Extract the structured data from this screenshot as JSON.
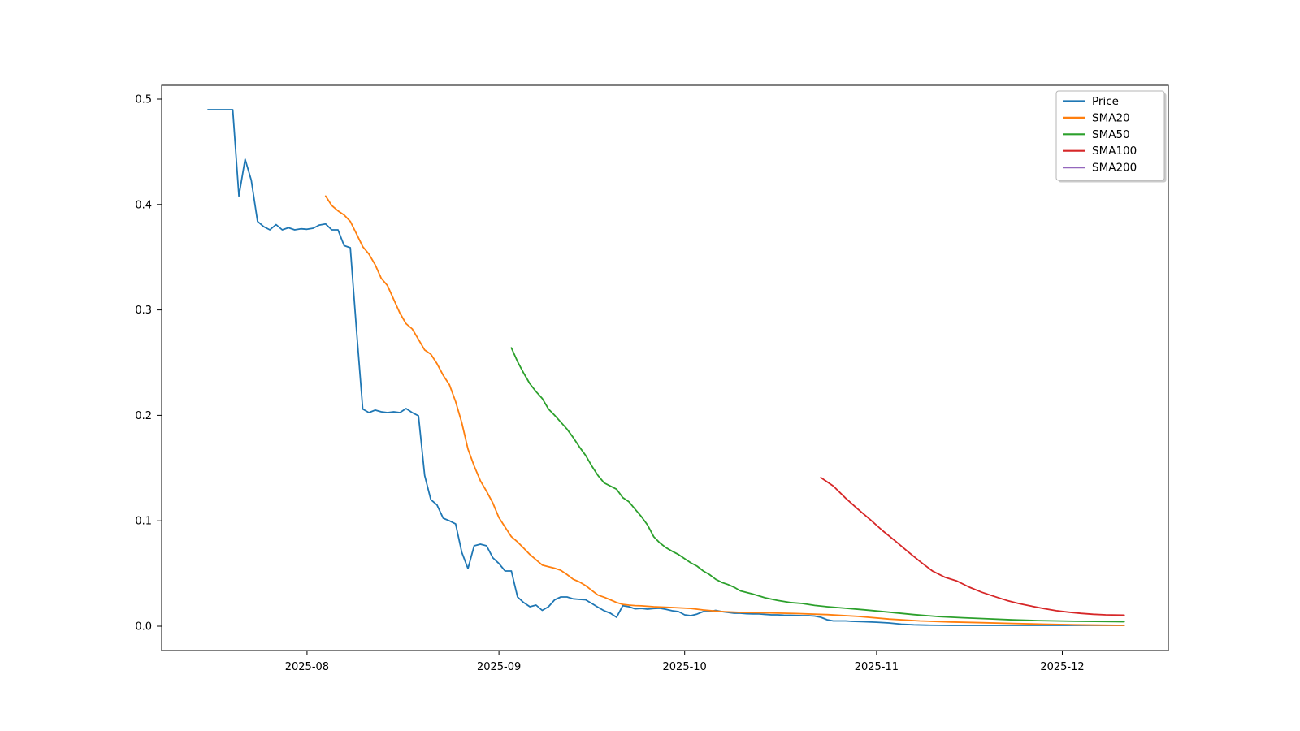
{
  "chart_data": {
    "type": "line",
    "title": "",
    "xlabel": "",
    "ylabel": "",
    "grid": false,
    "x_axis": {
      "unit": "days_since_first_point",
      "first_point_date": "2025-07-16",
      "visible_range_days": [
        -7.5,
        155
      ],
      "ticks": [
        {
          "label": "2025-08",
          "day": 16
        },
        {
          "label": "2025-09",
          "day": 47
        },
        {
          "label": "2025-10",
          "day": 77
        },
        {
          "label": "2025-11",
          "day": 108
        },
        {
          "label": "2025-12",
          "day": 138
        }
      ]
    },
    "y_axis": {
      "visible_range": [
        -0.023,
        0.513
      ],
      "ticks": [
        {
          "label": "0.0",
          "value": 0.0
        },
        {
          "label": "0.1",
          "value": 0.1
        },
        {
          "label": "0.2",
          "value": 0.2
        },
        {
          "label": "0.3",
          "value": 0.3
        },
        {
          "label": "0.4",
          "value": 0.4
        },
        {
          "label": "0.5",
          "value": 0.5
        }
      ]
    },
    "legend": {
      "position": "upper right",
      "entries": [
        "Price",
        "SMA20",
        "SMA50",
        "SMA100",
        "SMA200"
      ]
    },
    "series": [
      {
        "name": "Price",
        "color": "#1f77b4",
        "points": [
          [
            0,
            0.49
          ],
          [
            1,
            0.49
          ],
          [
            2,
            0.49
          ],
          [
            3,
            0.49
          ],
          [
            4,
            0.49
          ],
          [
            5,
            0.408
          ],
          [
            6,
            0.443
          ],
          [
            7,
            0.423
          ],
          [
            8,
            0.384
          ],
          [
            9,
            0.379
          ],
          [
            10,
            0.376
          ],
          [
            11,
            0.381
          ],
          [
            12,
            0.376
          ],
          [
            13,
            0.378
          ],
          [
            14,
            0.376
          ],
          [
            15,
            0.377
          ],
          [
            16,
            0.3765
          ],
          [
            17,
            0.3775
          ],
          [
            18,
            0.3805
          ],
          [
            19,
            0.3815
          ],
          [
            20,
            0.376
          ],
          [
            21,
            0.376
          ],
          [
            22,
            0.361
          ],
          [
            23,
            0.359
          ],
          [
            24,
            0.28
          ],
          [
            25,
            0.206
          ],
          [
            26,
            0.2026
          ],
          [
            27,
            0.205
          ],
          [
            28,
            0.2034
          ],
          [
            29,
            0.2026
          ],
          [
            30,
            0.2034
          ],
          [
            31,
            0.2026
          ],
          [
            32,
            0.2065
          ],
          [
            33,
            0.2026
          ],
          [
            34,
            0.1995
          ],
          [
            35,
            0.143
          ],
          [
            36,
            0.12
          ],
          [
            37,
            0.115
          ],
          [
            38,
            0.1025
          ],
          [
            39,
            0.1
          ],
          [
            40,
            0.097
          ],
          [
            41,
            0.07
          ],
          [
            42,
            0.0547
          ],
          [
            43,
            0.0763
          ],
          [
            44,
            0.0778
          ],
          [
            45,
            0.0763
          ],
          [
            46,
            0.065
          ],
          [
            47,
            0.0595
          ],
          [
            48,
            0.0524
          ],
          [
            49,
            0.0524
          ],
          [
            50,
            0.0277
          ],
          [
            51,
            0.0224
          ],
          [
            52,
            0.0185
          ],
          [
            53,
            0.02
          ],
          [
            54,
            0.015
          ],
          [
            55,
            0.0185
          ],
          [
            56,
            0.025
          ],
          [
            57,
            0.0277
          ],
          [
            58,
            0.0277
          ],
          [
            59,
            0.026
          ],
          [
            60,
            0.0254
          ],
          [
            61,
            0.025
          ],
          [
            62,
            0.0216
          ],
          [
            63,
            0.018
          ],
          [
            64,
            0.0146
          ],
          [
            65,
            0.0123
          ],
          [
            66,
            0.0085
          ],
          [
            67,
            0.0195
          ],
          [
            68,
            0.0185
          ],
          [
            69,
            0.0165
          ],
          [
            70,
            0.0169
          ],
          [
            71,
            0.0162
          ],
          [
            72,
            0.0168
          ],
          [
            73,
            0.017
          ],
          [
            74,
            0.016
          ],
          [
            75,
            0.0146
          ],
          [
            76,
            0.0139
          ],
          [
            77,
            0.0108
          ],
          [
            78,
            0.01
          ],
          [
            79,
            0.0115
          ],
          [
            80,
            0.0139
          ],
          [
            81,
            0.0139
          ],
          [
            82,
            0.015
          ],
          [
            83,
            0.0139
          ],
          [
            84,
            0.0131
          ],
          [
            85,
            0.0123
          ],
          [
            86,
            0.0123
          ],
          [
            87,
            0.0119
          ],
          [
            88,
            0.0116
          ],
          [
            89,
            0.0116
          ],
          [
            90,
            0.0112
          ],
          [
            91,
            0.0108
          ],
          [
            92,
            0.0108
          ],
          [
            93,
            0.0105
          ],
          [
            94,
            0.0104
          ],
          [
            95,
            0.0102
          ],
          [
            96,
            0.01
          ],
          [
            97,
            0.01
          ],
          [
            98,
            0.0096
          ],
          [
            99,
            0.0085
          ],
          [
            100,
            0.0062
          ],
          [
            101,
            0.005
          ],
          [
            102,
            0.005
          ],
          [
            103,
            0.005
          ],
          [
            104,
            0.0046
          ],
          [
            106,
            0.0042
          ],
          [
            108,
            0.0038
          ],
          [
            110,
            0.0031
          ],
          [
            112,
            0.0019
          ],
          [
            114,
            0.0013
          ],
          [
            116,
            0.001
          ],
          [
            120,
            0.0008
          ],
          [
            130,
            0.0008
          ],
          [
            140,
            0.0008
          ],
          [
            148,
            0.0008
          ]
        ]
      },
      {
        "name": "SMA20",
        "color": "#ff7f0e",
        "points": [
          [
            19,
            0.408
          ],
          [
            20,
            0.399
          ],
          [
            21,
            0.394
          ],
          [
            22,
            0.39
          ],
          [
            23,
            0.384
          ],
          [
            24,
            0.372
          ],
          [
            25,
            0.36
          ],
          [
            26,
            0.353
          ],
          [
            27,
            0.343
          ],
          [
            28,
            0.33
          ],
          [
            29,
            0.323
          ],
          [
            30,
            0.31
          ],
          [
            31,
            0.297
          ],
          [
            32,
            0.287
          ],
          [
            33,
            0.282
          ],
          [
            34,
            0.272
          ],
          [
            35,
            0.262
          ],
          [
            36,
            0.258
          ],
          [
            37,
            0.249
          ],
          [
            38,
            0.238
          ],
          [
            39,
            0.229
          ],
          [
            40,
            0.213
          ],
          [
            41,
            0.193
          ],
          [
            42,
            0.168
          ],
          [
            43,
            0.152
          ],
          [
            44,
            0.138
          ],
          [
            45,
            0.128
          ],
          [
            46,
            0.117
          ],
          [
            47,
            0.103
          ],
          [
            48,
            0.094
          ],
          [
            49,
            0.085
          ],
          [
            50,
            0.08
          ],
          [
            51,
            0.074
          ],
          [
            52,
            0.068
          ],
          [
            53,
            0.063
          ],
          [
            54,
            0.058
          ],
          [
            55,
            0.0565
          ],
          [
            56,
            0.055
          ],
          [
            57,
            0.053
          ],
          [
            58,
            0.049
          ],
          [
            59,
            0.0445
          ],
          [
            60,
            0.042
          ],
          [
            61,
            0.0385
          ],
          [
            62,
            0.034
          ],
          [
            63,
            0.0295
          ],
          [
            64,
            0.0275
          ],
          [
            65,
            0.025
          ],
          [
            66,
            0.0225
          ],
          [
            67,
            0.0207
          ],
          [
            68,
            0.02
          ],
          [
            69,
            0.0196
          ],
          [
            70,
            0.0193
          ],
          [
            72,
            0.0185
          ],
          [
            75,
            0.0177
          ],
          [
            78,
            0.0169
          ],
          [
            80,
            0.0154
          ],
          [
            83,
            0.0139
          ],
          [
            86,
            0.0131
          ],
          [
            90,
            0.0127
          ],
          [
            95,
            0.012
          ],
          [
            100,
            0.011
          ],
          [
            105,
            0.0093
          ],
          [
            110,
            0.0068
          ],
          [
            115,
            0.005
          ],
          [
            120,
            0.004
          ],
          [
            125,
            0.0033
          ],
          [
            130,
            0.0026
          ],
          [
            135,
            0.0019
          ],
          [
            140,
            0.0013
          ],
          [
            144,
            0.001
          ],
          [
            148,
            0.0008
          ]
        ]
      },
      {
        "name": "SMA50",
        "color": "#2ca02c",
        "points": [
          [
            49,
            0.264
          ],
          [
            50,
            0.251
          ],
          [
            51,
            0.24
          ],
          [
            52,
            0.23
          ],
          [
            53,
            0.2225
          ],
          [
            54,
            0.216
          ],
          [
            55,
            0.206
          ],
          [
            56,
            0.2
          ],
          [
            57,
            0.1935
          ],
          [
            58,
            0.187
          ],
          [
            59,
            0.179
          ],
          [
            60,
            0.17
          ],
          [
            61,
            0.162
          ],
          [
            62,
            0.152
          ],
          [
            63,
            0.143
          ],
          [
            64,
            0.136
          ],
          [
            65,
            0.133
          ],
          [
            66,
            0.13
          ],
          [
            67,
            0.122
          ],
          [
            68,
            0.118
          ],
          [
            69,
            0.111
          ],
          [
            70,
            0.104
          ],
          [
            71,
            0.096
          ],
          [
            72,
            0.085
          ],
          [
            73,
            0.079
          ],
          [
            74,
            0.0745
          ],
          [
            75,
            0.071
          ],
          [
            76,
            0.068
          ],
          [
            77,
            0.064
          ],
          [
            78,
            0.0601
          ],
          [
            79,
            0.057
          ],
          [
            80,
            0.0524
          ],
          [
            81,
            0.049
          ],
          [
            82,
            0.0445
          ],
          [
            83,
            0.0415
          ],
          [
            84,
            0.0395
          ],
          [
            85,
            0.037
          ],
          [
            86,
            0.0335
          ],
          [
            88,
            0.0305
          ],
          [
            90,
            0.027
          ],
          [
            92,
            0.0245
          ],
          [
            94,
            0.0225
          ],
          [
            96,
            0.0216
          ],
          [
            98,
            0.0197
          ],
          [
            100,
            0.0185
          ],
          [
            103,
            0.017
          ],
          [
            106,
            0.0156
          ],
          [
            110,
            0.0133
          ],
          [
            114,
            0.011
          ],
          [
            118,
            0.0092
          ],
          [
            122,
            0.008
          ],
          [
            126,
            0.007
          ],
          [
            130,
            0.006
          ],
          [
            134,
            0.0053
          ],
          [
            140,
            0.0047
          ],
          [
            148,
            0.0042
          ]
        ]
      },
      {
        "name": "SMA100",
        "color": "#d62728",
        "points": [
          [
            99,
            0.141
          ],
          [
            101,
            0.133
          ],
          [
            103,
            0.1215
          ],
          [
            105,
            0.111
          ],
          [
            107,
            0.101
          ],
          [
            109,
            0.0905
          ],
          [
            111,
            0.081
          ],
          [
            113,
            0.071
          ],
          [
            115,
            0.0615
          ],
          [
            117,
            0.0525
          ],
          [
            119,
            0.0465
          ],
          [
            121,
            0.0428
          ],
          [
            123,
            0.037
          ],
          [
            125,
            0.0322
          ],
          [
            127,
            0.0283
          ],
          [
            129,
            0.0245
          ],
          [
            131,
            0.0215
          ],
          [
            133,
            0.019
          ],
          [
            135,
            0.0168
          ],
          [
            137,
            0.0147
          ],
          [
            139,
            0.0133
          ],
          [
            141,
            0.0122
          ],
          [
            143,
            0.0113
          ],
          [
            145,
            0.0108
          ],
          [
            148,
            0.0105
          ]
        ]
      },
      {
        "name": "SMA200",
        "color": "#9467bd",
        "points": []
      }
    ]
  }
}
